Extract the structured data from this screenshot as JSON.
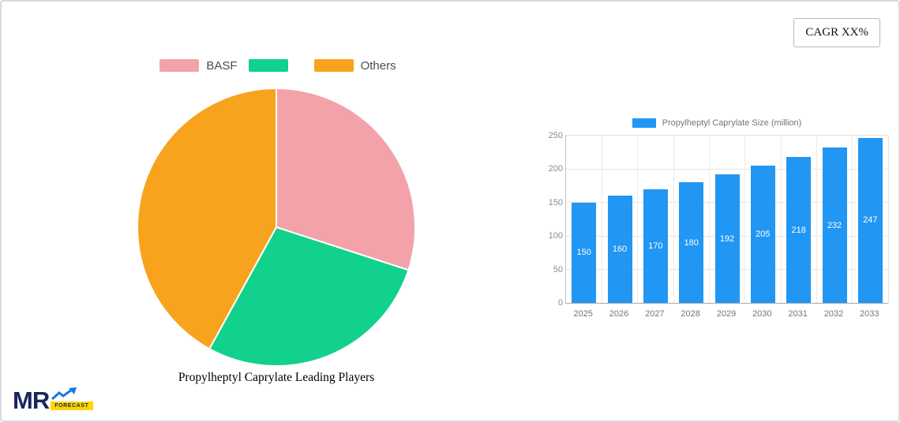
{
  "page": {
    "cagr_label": "CAGR XX%"
  },
  "logo": {
    "mr": "MR",
    "forecast": "FORECAST"
  },
  "colors": {
    "pie_basf": "#f3a2a9",
    "pie_unnamed": "#12d18d",
    "pie_others": "#f8a31e",
    "bar_blue": "#2196f3"
  },
  "chart_data": [
    {
      "type": "pie",
      "title": "Propylheptyl Caprylate Leading Players",
      "legend_position": "top",
      "slices": [
        {
          "label": "BASF",
          "value": 30,
          "color": "#f3a2a9"
        },
        {
          "label": "",
          "value": 28,
          "color": "#12d18d"
        },
        {
          "label": "Others",
          "value": 42,
          "color": "#f8a31e"
        }
      ]
    },
    {
      "type": "bar",
      "legend": "Propylheptyl Caprylate Size (million)",
      "categories": [
        "2025",
        "2026",
        "2027",
        "2028",
        "2029",
        "2030",
        "2031",
        "2032",
        "2033"
      ],
      "values": [
        150,
        160,
        170,
        180,
        192,
        205,
        218,
        232,
        247
      ],
      "ylim": [
        0,
        250
      ],
      "yticks": [
        0,
        50,
        100,
        150,
        200,
        250
      ],
      "bar_color": "#2196f3",
      "grid": true,
      "legend_position": "top"
    }
  ]
}
